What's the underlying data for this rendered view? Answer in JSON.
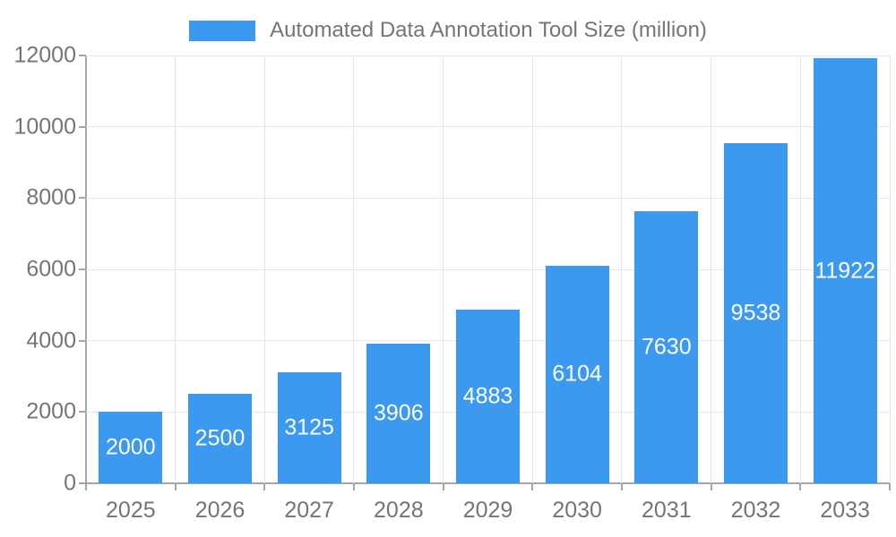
{
  "chart_data": {
    "type": "bar",
    "title": "Automated Data Annotation Tool Size (million)",
    "categories": [
      "2025",
      "2026",
      "2027",
      "2028",
      "2029",
      "2030",
      "2031",
      "2032",
      "2033"
    ],
    "values": [
      2000,
      2500,
      3125,
      3906,
      4883,
      6104,
      7630,
      9538,
      11922
    ],
    "xlabel": "",
    "ylabel": "",
    "ylim": [
      0,
      12000
    ],
    "y_ticks": [
      0,
      2000,
      4000,
      6000,
      8000,
      10000,
      12000
    ],
    "grid": true,
    "legend_position": "top",
    "bar_width_fraction": 0.71,
    "colors": {
      "bar": "#3b99f0",
      "value_label": "#ffffff",
      "axis_text": "#757575",
      "grid_line": "#e6e6e6",
      "axis_line": "#a6a6a6",
      "background": "#ffffff"
    }
  }
}
